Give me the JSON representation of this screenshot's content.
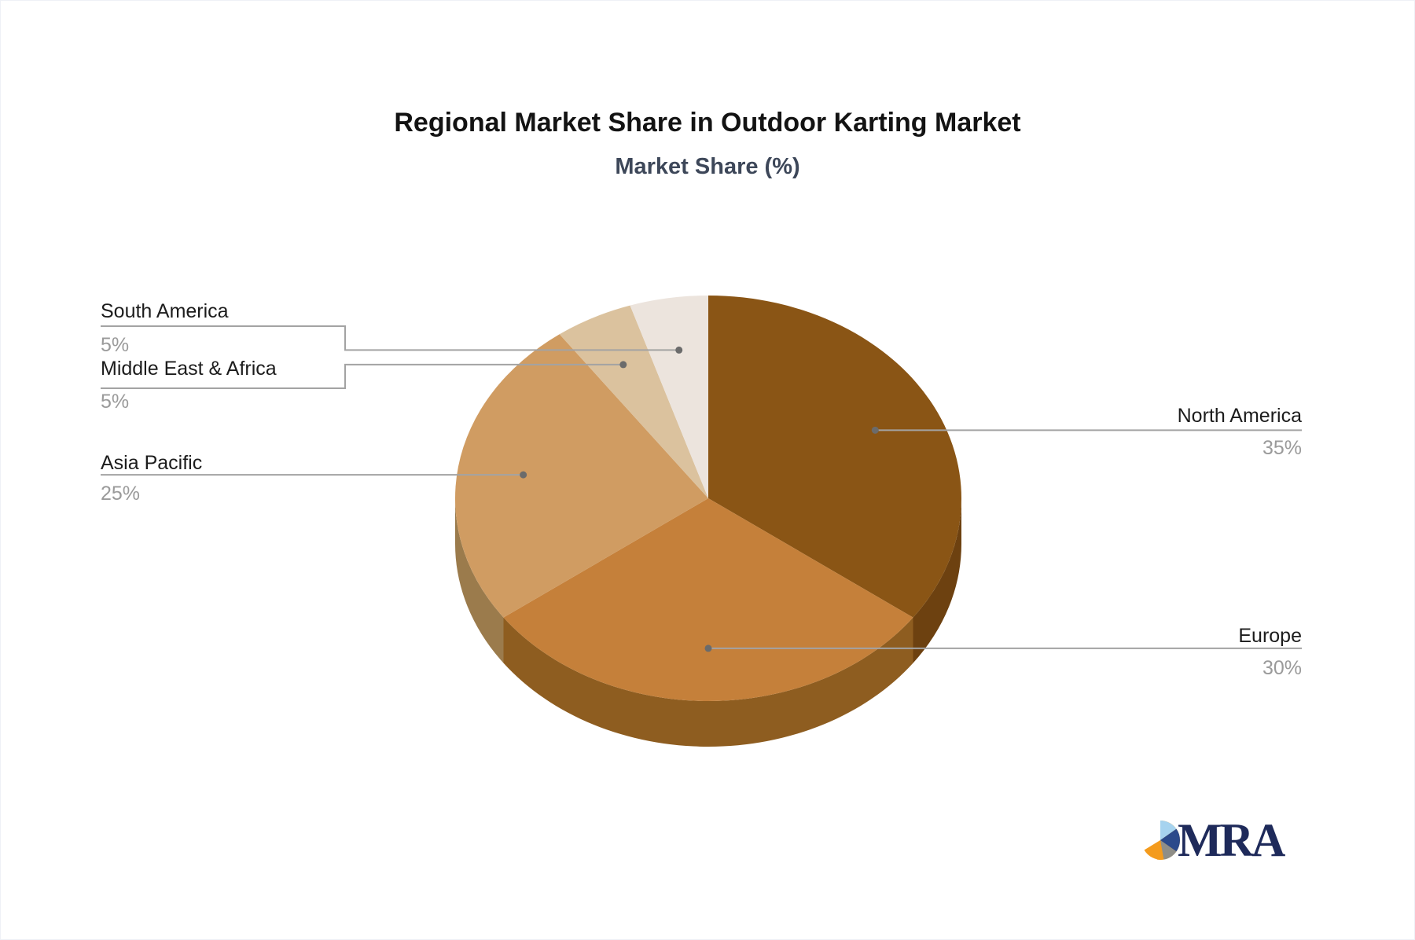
{
  "page": {
    "background": "#ffffff"
  },
  "chart_data": {
    "type": "pie",
    "style": "3d",
    "title": "Regional Market Share in Outdoor Karting Market",
    "subtitle": "Market Share (%)",
    "unit": "%",
    "legend_position": "none",
    "labels": [
      "North America",
      "Europe",
      "Asia Pacific",
      "Middle East & Africa",
      "South America"
    ],
    "values": [
      35,
      30,
      25,
      5,
      5
    ],
    "pct_labels": [
      "35%",
      "30%",
      "25%",
      "5%",
      "5%"
    ],
    "colors": [
      "#8a5515",
      "#c5803a",
      "#d09c62",
      "#dbc29e",
      "#ece4dd"
    ],
    "side_colors": [
      "#6d4110",
      "#8e5d20",
      "#9b7b4c",
      "#c9ab7e",
      "#d6c8ba"
    ],
    "start_angle_deg": 0,
    "clockwise": true,
    "leader_line_color": "#a3a3a3",
    "leader_dot_color": "#6b6b6b",
    "label_color": "#1c1c1c",
    "value_color": "#9a9a9a"
  },
  "logo": {
    "text": "MRA",
    "icon_colors": {
      "orange": "#f49b1d",
      "light_blue": "#a6d3ef",
      "navy": "#2b4a8b",
      "gray": "#8f8e88"
    },
    "text_color": "#1e2a5a"
  }
}
